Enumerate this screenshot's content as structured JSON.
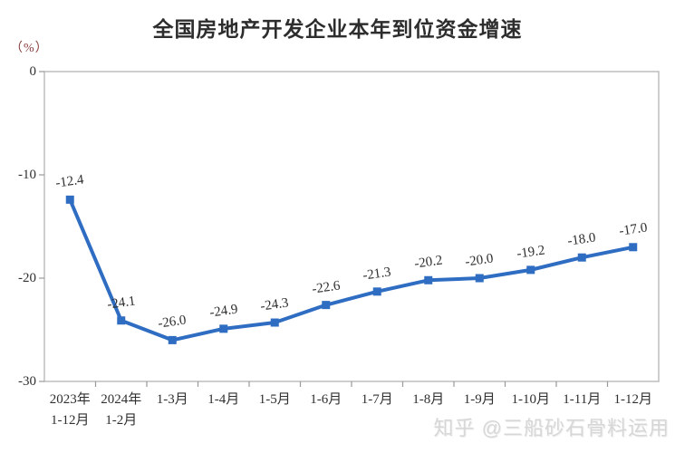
{
  "watermark": "知乎 @三船砂石骨料运用",
  "chart_data": {
    "type": "line",
    "title": "全国房地产开发企业本年到位资金增速",
    "unit_label": "（%）",
    "categories": [
      [
        "2023年",
        "1-12月"
      ],
      [
        "2024年",
        "1-2月"
      ],
      [
        "1-3月"
      ],
      [
        "1-4月"
      ],
      [
        "1-5月"
      ],
      [
        "1-6月"
      ],
      [
        "1-7月"
      ],
      [
        "1-8月"
      ],
      [
        "1-9月"
      ],
      [
        "1-10月"
      ],
      [
        "1-11月"
      ],
      [
        "1-12月"
      ]
    ],
    "values": [
      -12.4,
      -24.1,
      -26.0,
      -24.9,
      -24.3,
      -22.6,
      -21.3,
      -20.2,
      -20.0,
      -19.2,
      -18.0,
      -17.0
    ],
    "data_labels": [
      "-12.4",
      "-24.1",
      "-26.0",
      "-24.9",
      "-24.3",
      "-22.6",
      "-21.3",
      "-20.2",
      "-20.0",
      "-19.2",
      "-18.0",
      "-17.0"
    ],
    "ylim": [
      -30,
      0
    ],
    "yticks": [
      0,
      -10,
      -20,
      -30
    ],
    "grid": false,
    "legend": "none",
    "line_color": "#2e6dc2",
    "marker": "square",
    "border_color": "#bdbdbd",
    "tick_color": "#9a9a9a"
  }
}
